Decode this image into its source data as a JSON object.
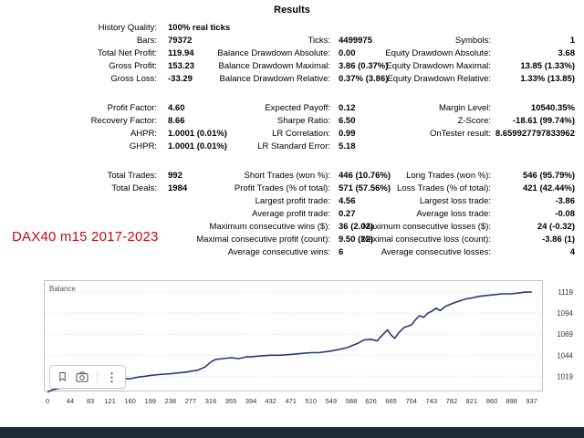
{
  "page": {
    "title": "Results"
  },
  "red_note": "DAX40 m15 2017-2023",
  "stats": {
    "groups": [
      {
        "rows": [
          {
            "c1": {
              "label": "History Quality:",
              "value": "100% real ticks"
            }
          },
          {
            "c1": {
              "label": "Bars:",
              "value": "79372"
            },
            "c2": {
              "label": "Ticks:",
              "value": "4499975"
            },
            "c3": {
              "label": "Symbols:",
              "value": "1"
            }
          },
          {
            "c1": {
              "label": "Total Net Profit:",
              "value": "119.94"
            },
            "c2": {
              "label": "Balance Drawdown Absolute:",
              "value": "0.00"
            },
            "c3": {
              "label": "Equity Drawdown Absolute:",
              "value": "3.68"
            }
          },
          {
            "c1": {
              "label": "Gross Profit:",
              "value": "153.23"
            },
            "c2": {
              "label": "Balance Drawdown Maximal:",
              "value": "3.86 (0.37%)"
            },
            "c3": {
              "label": "Equity Drawdown Maximal:",
              "value": "13.85 (1.33%)"
            }
          },
          {
            "c1": {
              "label": "Gross Loss:",
              "value": "-33.29"
            },
            "c2": {
              "label": "Balance Drawdown Relative:",
              "value": "0.37% (3.86)"
            },
            "c3": {
              "label": "Equity Drawdown Relative:",
              "value": "1.33% (13.85)"
            }
          }
        ]
      },
      {
        "rows": [
          {
            "c1": {
              "label": "Profit Factor:",
              "value": "4.60"
            },
            "c2": {
              "label": "Expected Payoff:",
              "value": "0.12"
            },
            "c3": {
              "label": "Margin Level:",
              "value": "10540.35%"
            }
          },
          {
            "c1": {
              "label": "Recovery Factor:",
              "value": "8.66"
            },
            "c2": {
              "label": "Sharpe Ratio:",
              "value": "6.50"
            },
            "c3": {
              "label": "Z-Score:",
              "value": "-18.61 (99.74%)"
            }
          },
          {
            "c1": {
              "label": "AHPR:",
              "value": "1.0001 (0.01%)"
            },
            "c2": {
              "label": "LR Correlation:",
              "value": "0.99"
            },
            "c3": {
              "label": "OnTester result:",
              "value": "8.659927797833962"
            }
          },
          {
            "c1": {
              "label": "GHPR:",
              "value": "1.0001 (0.01%)"
            },
            "c2": {
              "label": "LR Standard Error:",
              "value": "5.18"
            }
          }
        ]
      },
      {
        "rows": [
          {
            "c1": {
              "label": "Total Trades:",
              "value": "992"
            },
            "c2": {
              "label": "Short Trades (won %):",
              "value": "446 (10.76%)"
            },
            "c3": {
              "label": "Long Trades (won %):",
              "value": "546 (95.79%)"
            }
          },
          {
            "c1": {
              "label": "Total Deals:",
              "value": "1984"
            },
            "c2": {
              "label": "Profit Trades (% of total):",
              "value": "571 (57.56%)"
            },
            "c3": {
              "label": "Loss Trades (% of total):",
              "value": "421 (42.44%)"
            }
          },
          {
            "c2": {
              "label": "Largest profit trade:",
              "value": "4.56"
            },
            "c3": {
              "label": "Largest loss trade:",
              "value": "-3.86"
            }
          },
          {
            "c2": {
              "label": "Average profit trade:",
              "value": "0.27"
            },
            "c3": {
              "label": "Average loss trade:",
              "value": "-0.08"
            }
          },
          {
            "c2": {
              "label": "Maximum consecutive wins ($):",
              "value": "36 (2.02)"
            },
            "c3": {
              "label": "Maximum consecutive losses ($):",
              "value": "24 (-0.32)"
            }
          },
          {
            "c2": {
              "label": "Maximal consecutive profit (count):",
              "value": "9.50 (22)"
            },
            "c3": {
              "label": "Maximal consecutive loss (count):",
              "value": "-3.86 (1)"
            }
          },
          {
            "c2": {
              "label": "Average consecutive wins:",
              "value": "6"
            },
            "c3": {
              "label": "Average consecutive losses:",
              "value": "4"
            }
          }
        ]
      }
    ]
  },
  "chart_data": {
    "type": "line",
    "title": "Balance",
    "xlabel": "",
    "ylabel": "",
    "xlim": [
      0,
      950
    ],
    "ylim": [
      1002,
      1130
    ],
    "x_ticks": [
      0,
      44,
      83,
      121,
      160,
      199,
      238,
      277,
      316,
      355,
      394,
      432,
      471,
      510,
      549,
      588,
      626,
      665,
      704,
      743,
      782,
      821,
      860,
      898,
      937
    ],
    "y_ticks": [
      1019,
      1044,
      1069,
      1094,
      1119
    ],
    "grid": true,
    "legend_position": "none",
    "line_color": "#263a73",
    "series": [
      {
        "name": "Balance",
        "points": [
          [
            0,
            1000
          ],
          [
            10,
            1003
          ],
          [
            25,
            1005
          ],
          [
            44,
            1007
          ],
          [
            60,
            1007
          ],
          [
            75,
            1010
          ],
          [
            83,
            1012
          ],
          [
            95,
            1012
          ],
          [
            110,
            1013
          ],
          [
            121,
            1014
          ],
          [
            135,
            1015
          ],
          [
            150,
            1016
          ],
          [
            160,
            1016
          ],
          [
            175,
            1018
          ],
          [
            190,
            1019
          ],
          [
            199,
            1020
          ],
          [
            215,
            1021
          ],
          [
            238,
            1022
          ],
          [
            255,
            1023
          ],
          [
            270,
            1024
          ],
          [
            277,
            1025
          ],
          [
            290,
            1026
          ],
          [
            305,
            1030
          ],
          [
            316,
            1036
          ],
          [
            325,
            1039
          ],
          [
            340,
            1040
          ],
          [
            355,
            1041
          ],
          [
            370,
            1040
          ],
          [
            385,
            1042
          ],
          [
            394,
            1042
          ],
          [
            410,
            1043
          ],
          [
            432,
            1044
          ],
          [
            450,
            1044
          ],
          [
            471,
            1045
          ],
          [
            490,
            1046
          ],
          [
            510,
            1047
          ],
          [
            525,
            1047
          ],
          [
            549,
            1049
          ],
          [
            565,
            1051
          ],
          [
            580,
            1053
          ],
          [
            588,
            1055
          ],
          [
            600,
            1058
          ],
          [
            612,
            1062
          ],
          [
            626,
            1063
          ],
          [
            638,
            1061
          ],
          [
            648,
            1068
          ],
          [
            658,
            1074
          ],
          [
            665,
            1068
          ],
          [
            672,
            1064
          ],
          [
            680,
            1071
          ],
          [
            690,
            1077
          ],
          [
            704,
            1080
          ],
          [
            712,
            1086
          ],
          [
            720,
            1091
          ],
          [
            728,
            1089
          ],
          [
            736,
            1094
          ],
          [
            743,
            1096
          ],
          [
            752,
            1100
          ],
          [
            760,
            1097
          ],
          [
            770,
            1102
          ],
          [
            782,
            1105
          ],
          [
            790,
            1107
          ],
          [
            800,
            1109
          ],
          [
            810,
            1111
          ],
          [
            821,
            1112
          ],
          [
            835,
            1114
          ],
          [
            850,
            1115
          ],
          [
            865,
            1116
          ],
          [
            880,
            1117
          ],
          [
            898,
            1117
          ],
          [
            912,
            1118
          ],
          [
            925,
            1119
          ],
          [
            937,
            1119
          ]
        ]
      }
    ]
  },
  "chart_toolbar": {
    "icons": [
      {
        "name": "bookmark-icon"
      },
      {
        "name": "camera-icon"
      },
      {
        "name": "more-icon",
        "glyph": "⋮"
      }
    ]
  }
}
